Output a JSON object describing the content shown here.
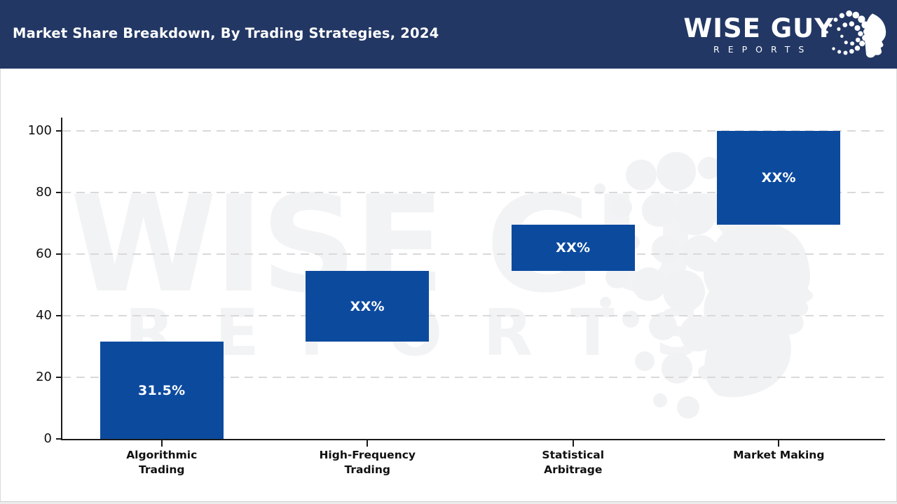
{
  "header": {
    "title": "Market Share Breakdown, By Trading Strategies, 2024",
    "logo": {
      "line1": "WISE GUY",
      "line2": "REPORTS"
    }
  },
  "watermark": {
    "line1": "WISE GUY",
    "line2": "REPORTS"
  },
  "colors": {
    "header_bg": "#223764",
    "bar": "#0C4A9E",
    "grid": "#D9D9D9",
    "axis": "#1A1A1A",
    "bar_label": "#FFFFFF",
    "watermark": "#F2F3F5"
  },
  "chart_data": {
    "type": "bar",
    "subtype": "waterfall",
    "title": "Market Share Breakdown, By Trading Strategies, 2024",
    "xlabel": "",
    "ylabel": "",
    "ylim": [
      0,
      100
    ],
    "yticks": [
      0,
      20,
      40,
      60,
      80,
      100
    ],
    "grid": "horizontal-dashed",
    "legend": "none",
    "categories": [
      "Algorithmic Trading",
      "High-Frequency Trading",
      "Statistical Arbitrage",
      "Market Making"
    ],
    "categories_display": [
      "Algorithmic\nTrading",
      "High-Frequency\nTrading",
      "Statistical\nArbitrage",
      "Market Making"
    ],
    "segments": [
      {
        "category": "Algorithmic Trading",
        "start": 0,
        "end": 31.5,
        "label": "31.5%"
      },
      {
        "category": "High-Frequency Trading",
        "start": 31.5,
        "end": 54.5,
        "label": "XX%"
      },
      {
        "category": "Statistical Arbitrage",
        "start": 54.5,
        "end": 69.5,
        "label": "XX%"
      },
      {
        "category": "Market Making",
        "start": 69.5,
        "end": 100,
        "label": "XX%"
      }
    ]
  }
}
